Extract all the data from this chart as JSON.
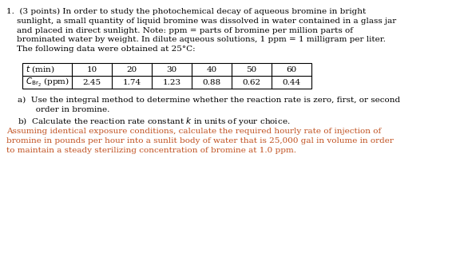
{
  "bg_color": "#ffffff",
  "text_color": "#000000",
  "orange_color": "#c0501f",
  "table_header": [
    "t (min)",
    "10",
    "20",
    "30",
    "40",
    "50",
    "60"
  ],
  "table_values": [
    "2.45",
    "1.74",
    "1.23",
    "0.88",
    "0.62",
    "0.44"
  ],
  "font_size": 7.5,
  "lh": 11.8
}
